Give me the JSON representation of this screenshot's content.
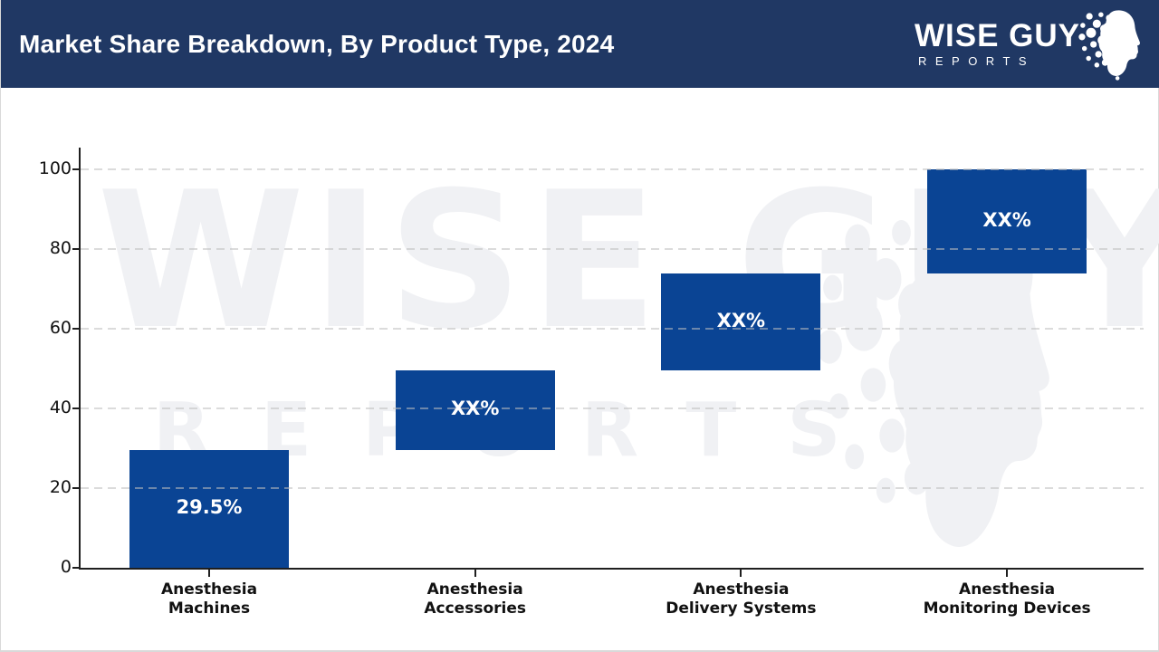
{
  "header": {
    "title": "Market Share Breakdown, By Product Type, 2024",
    "logo": {
      "brand_line1": "WISE GUY",
      "brand_line2": "REPORTS"
    }
  },
  "watermark": {
    "line1": "WISE GUY",
    "line2": "REPORTS"
  },
  "colors": {
    "header_bg": "#203864",
    "bar": "#0a4494",
    "bar_label_text": "#ffffff",
    "axis": "#1f1f1f",
    "tick_text": "#111111",
    "gridline": "#e2e2e2",
    "watermark": "#f0f1f4",
    "page_bg": "#ffffff"
  },
  "chart_data": {
    "type": "bar",
    "variant": "floating-waterfall",
    "title": "Market Share Breakdown, By Product Type, 2024",
    "categories": [
      [
        "Anesthesia",
        "Machines"
      ],
      [
        "Anesthesia",
        "Accessories"
      ],
      [
        "Anesthesia",
        "Delivery Systems"
      ],
      [
        "Anesthesia",
        "Monitoring Devices"
      ]
    ],
    "segments": [
      {
        "start": 0,
        "end": 29.5,
        "label": "29.5%"
      },
      {
        "start": 29.5,
        "end": 49.5,
        "label": "XX%"
      },
      {
        "start": 49.5,
        "end": 73.8,
        "label": "XX%"
      },
      {
        "start": 73.8,
        "end": 100,
        "label": "XX%"
      }
    ],
    "yticks": [
      0,
      20,
      40,
      60,
      80,
      100
    ],
    "ylim": [
      0,
      105
    ],
    "xlabel": "",
    "ylabel": "",
    "grid": "dashed-horizontal",
    "legend": null
  }
}
